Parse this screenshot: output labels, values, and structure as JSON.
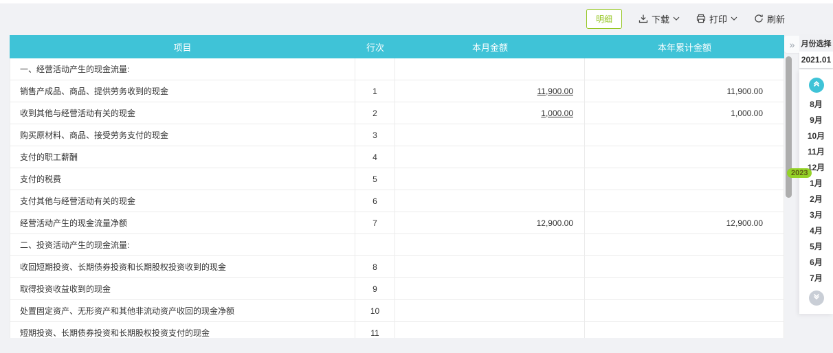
{
  "toolbar": {
    "detail_label": "明细",
    "download_label": "下载",
    "print_label": "打印",
    "refresh_label": "刷新"
  },
  "table": {
    "columns": [
      "项目",
      "行次",
      "本月金额",
      "本年累计金额"
    ],
    "rows": [
      {
        "item": "一、经营活动产生的现金流量:",
        "line": "",
        "month": "",
        "ytd": "",
        "link": false
      },
      {
        "item": "销售产成品、商品、提供劳务收到的现金",
        "line": "1",
        "month": "11,900.00",
        "ytd": "11,900.00",
        "link": true
      },
      {
        "item": "收到其他与经营活动有关的现金",
        "line": "2",
        "month": "1,000.00",
        "ytd": "1,000.00",
        "link": true
      },
      {
        "item": "购买原材料、商品、接受劳务支付的现金",
        "line": "3",
        "month": "",
        "ytd": "",
        "link": false
      },
      {
        "item": "支付的职工薪酬",
        "line": "4",
        "month": "",
        "ytd": "",
        "link": false
      },
      {
        "item": "支付的税费",
        "line": "5",
        "month": "",
        "ytd": "",
        "link": false
      },
      {
        "item": "支付其他与经营活动有关的现金",
        "line": "6",
        "month": "",
        "ytd": "",
        "link": false
      },
      {
        "item": "经营活动产生的现金流量净额",
        "line": "7",
        "month": "12,900.00",
        "ytd": "12,900.00",
        "link": false
      },
      {
        "item": "二、投资活动产生的现金流量:",
        "line": "",
        "month": "",
        "ytd": "",
        "link": false
      },
      {
        "item": "收回短期投资、长期债券投资和长期股权投资收到的现金",
        "line": "8",
        "month": "",
        "ytd": "",
        "link": false
      },
      {
        "item": "取得投资收益收到的现金",
        "line": "9",
        "month": "",
        "ytd": "",
        "link": false
      },
      {
        "item": "处置固定资产、无形资产和其他非流动资产收回的现金净额",
        "line": "10",
        "month": "",
        "ytd": "",
        "link": false
      },
      {
        "item": "短期投资、长期债券投资和长期股权投资支付的现金",
        "line": "11",
        "month": "",
        "ytd": "",
        "link": false
      }
    ]
  },
  "sidebar": {
    "title": "月份选择",
    "current": "2021.01",
    "year_badge": "2023",
    "months": [
      "8月",
      "9月",
      "10月",
      "11月",
      "12月",
      "1月",
      "2月",
      "3月",
      "4月",
      "5月",
      "6月",
      "7月"
    ],
    "badge_after_index": 4
  },
  "colors": {
    "header_teal": "#3fc3d7",
    "accent_green": "#95c623",
    "badge_green": "#94d227",
    "page_bg": "#f1f2f5"
  }
}
